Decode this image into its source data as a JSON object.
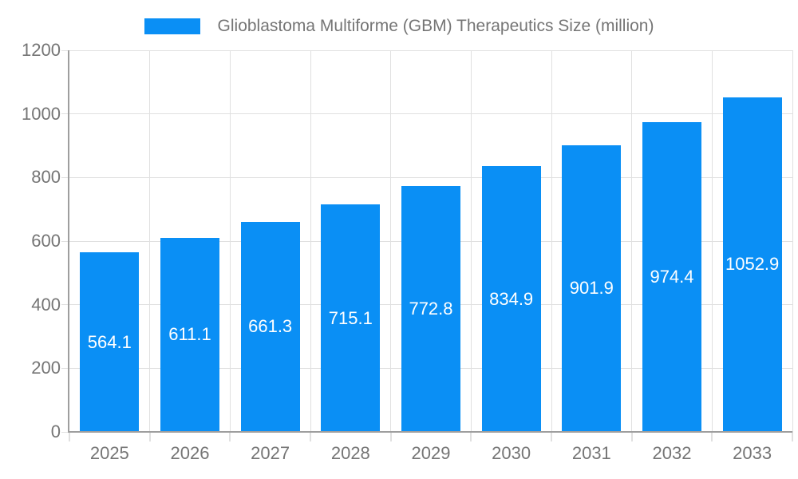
{
  "chart_data": {
    "type": "bar",
    "title": "Glioblastoma Multiforme (GBM) Therapeutics Size (million)",
    "categories": [
      "2025",
      "2026",
      "2027",
      "2028",
      "2029",
      "2030",
      "2031",
      "2032",
      "2033"
    ],
    "values": [
      564.1,
      611.1,
      661.3,
      715.1,
      772.8,
      834.9,
      901.9,
      974.4,
      1052.9
    ],
    "xlabel": "",
    "ylabel": "",
    "ylim": [
      0,
      1200
    ],
    "y_ticks": [
      0,
      200,
      400,
      600,
      800,
      1000,
      1200
    ],
    "legend_position": "top",
    "legend_entries": [
      "Glioblastoma Multiforme (GBM) Therapeutics Size (million)"
    ],
    "grid": true,
    "value_label_position": "inside-center"
  },
  "colors": {
    "bar": "#0a8ff5",
    "axis": "#9e9e9e",
    "grid": "#e0e0e0",
    "axis_label": "#757575",
    "legend_text": "#757575",
    "value_label": "#ffffff",
    "background": "#ffffff"
  }
}
